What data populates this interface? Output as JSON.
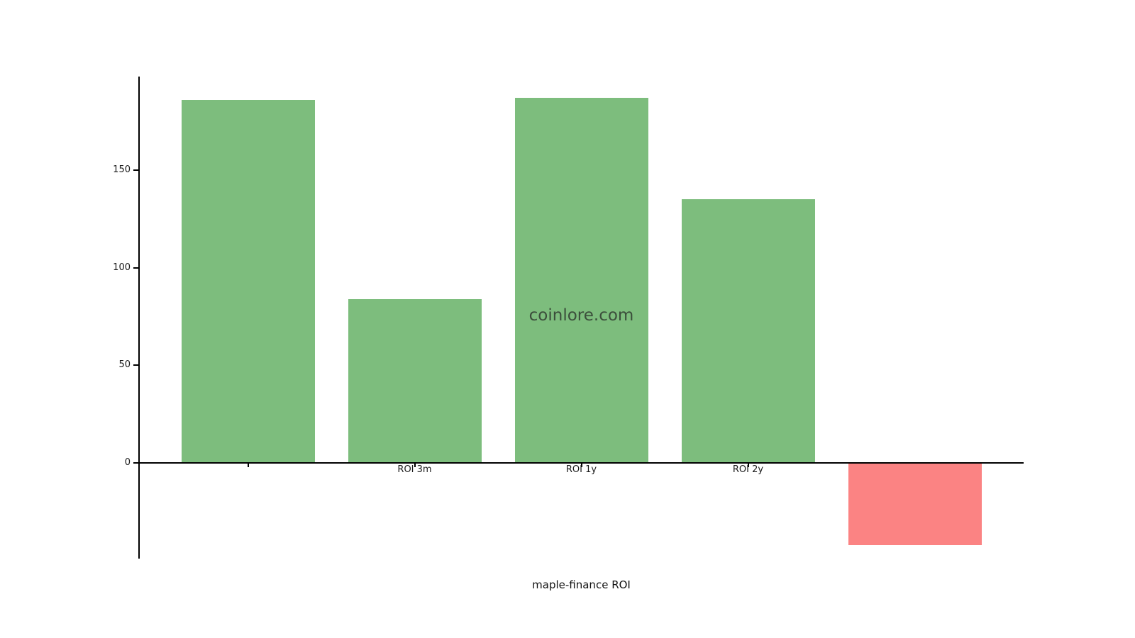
{
  "page": {
    "background": "#ffffff"
  },
  "watermark": {
    "text": "coinlore.com"
  },
  "chart_data": {
    "type": "bar",
    "title": "maple-finance ROI",
    "categories": [
      "",
      "ROI 3m",
      "ROI 1y",
      "ROI 2y",
      ""
    ],
    "values": [
      186,
      84,
      187,
      135,
      -42
    ],
    "series": [
      {
        "name": "maple-finance ROI",
        "values": [
          186,
          84,
          187,
          135,
          -42
        ]
      }
    ],
    "xlabel": "",
    "ylabel": "",
    "y_ticks": [
      0,
      50,
      100,
      150
    ],
    "ylim": [
      -49,
      198
    ],
    "grid": false,
    "legend_position": "none",
    "colors": {
      "positive_bar": "#7dbd7d",
      "negative_bar": "#fb8383",
      "axis": "#000000",
      "tick_text": "#1a1a1a"
    }
  }
}
